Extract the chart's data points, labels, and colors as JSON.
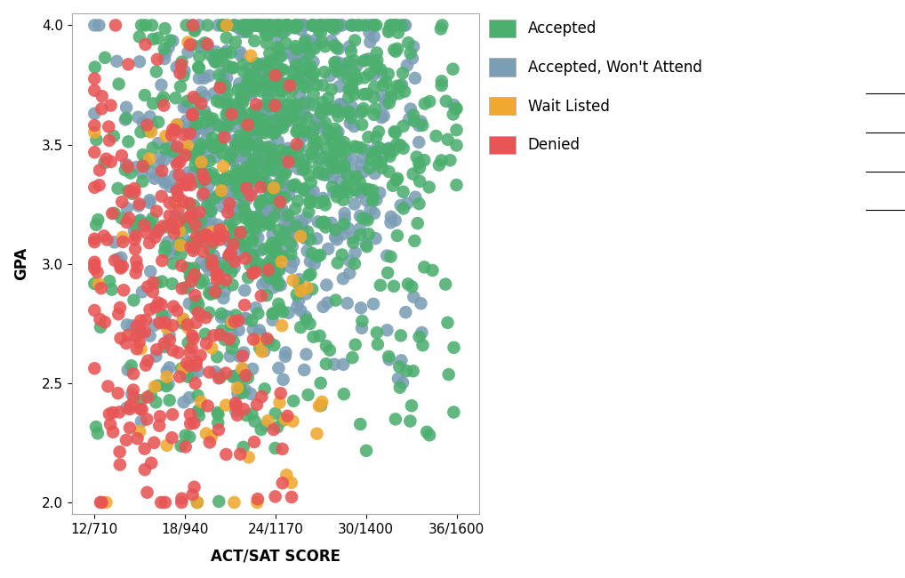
{
  "title": "",
  "xlabel": "ACT/SAT SCORE",
  "ylabel": "GPA",
  "xlim": [
    10.5,
    37.5
  ],
  "ylim": [
    1.95,
    4.05
  ],
  "xticks": [
    12,
    18,
    24,
    30,
    36
  ],
  "xticklabels": [
    "12/710",
    "18/940",
    "24/1170",
    "30/1400",
    "36/1600"
  ],
  "yticks": [
    2.0,
    2.5,
    3.0,
    3.5,
    4.0
  ],
  "categories": {
    "Accepted": {
      "color": "#4caf6e",
      "zorder": 3
    },
    "Accepted, Won't Attend": {
      "color": "#7b9eb5",
      "zorder": 2
    },
    "Wait Listed": {
      "color": "#f0a830",
      "zorder": 4
    },
    "Denied": {
      "color": "#e85555",
      "zorder": 5
    }
  },
  "marker_size": 110,
  "alpha": 0.88,
  "background_color": "#ffffff",
  "seed": 12345
}
